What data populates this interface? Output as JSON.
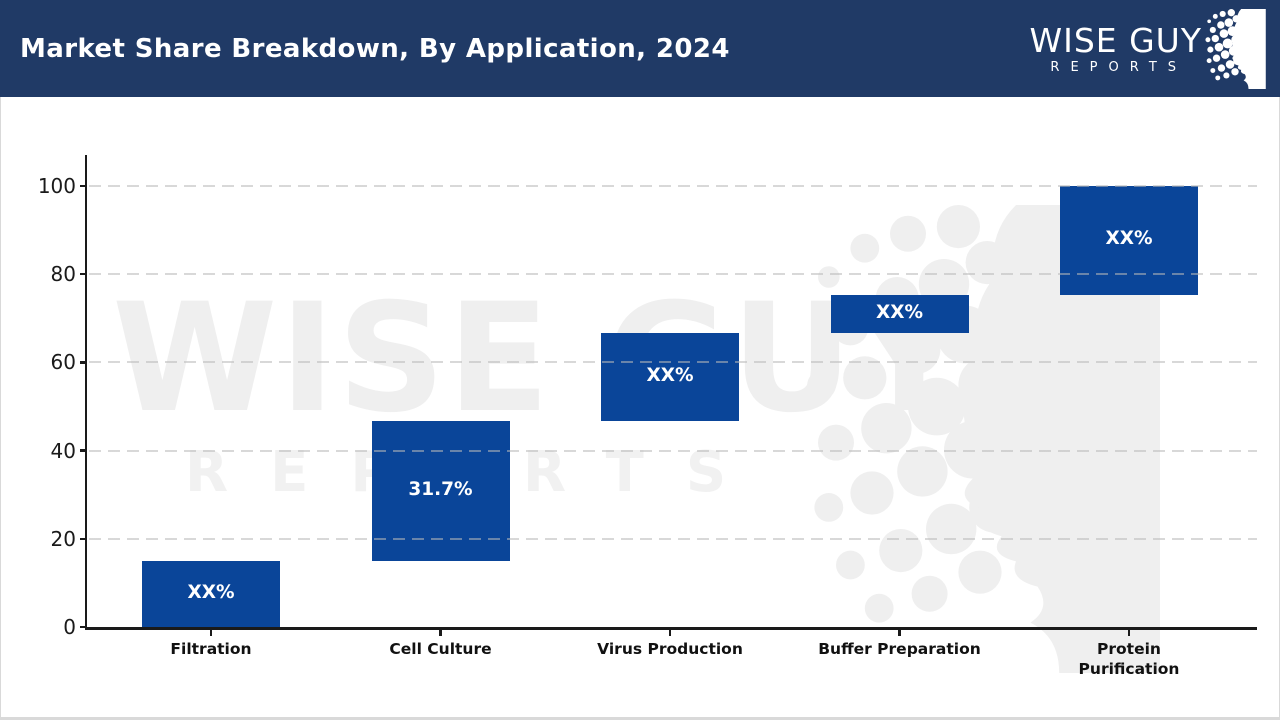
{
  "header": {
    "title": "Market Share Breakdown, By Application, 2024",
    "logo": {
      "line1": "WISE GUY",
      "line2": "REPORTS"
    }
  },
  "watermark": {
    "line1": "WISE GUY",
    "line2": "REPORTS"
  },
  "chart_data": {
    "type": "bar",
    "subtype": "floating-waterfall",
    "title": "Market Share Breakdown, By Application, 2024",
    "categories": [
      "Filtration",
      "Cell Culture",
      "Virus Production",
      "Buffer Preparation",
      "Protein\nPurification"
    ],
    "bars": [
      {
        "category": "Filtration",
        "start": 0,
        "end": 15,
        "height_pct": 15,
        "label": "XX%"
      },
      {
        "category": "Cell Culture",
        "start": 15,
        "end": 46.7,
        "height_pct": 31.7,
        "label": "31.7%"
      },
      {
        "category": "Virus Production",
        "start": 46.7,
        "end": 66.7,
        "height_pct": 20,
        "label": "XX%"
      },
      {
        "category": "Buffer Preparation",
        "start": 66.7,
        "end": 75.3,
        "height_pct": 8.6,
        "label": "XX%"
      },
      {
        "category": "Protein Purification",
        "start": 75.3,
        "end": 100,
        "height_pct": 24.7,
        "label": "XX%"
      }
    ],
    "yticks": [
      0,
      20,
      40,
      60,
      80,
      100
    ],
    "ylim": [
      0,
      107
    ],
    "xlabel": "",
    "ylabel": "",
    "grid": true,
    "grid_style": "dashed",
    "legend": "none",
    "bar_color": "#0a4599",
    "bar_label_color": "#ffffff",
    "axis_color": "#1a1a1a",
    "header_color": "#203a66"
  }
}
